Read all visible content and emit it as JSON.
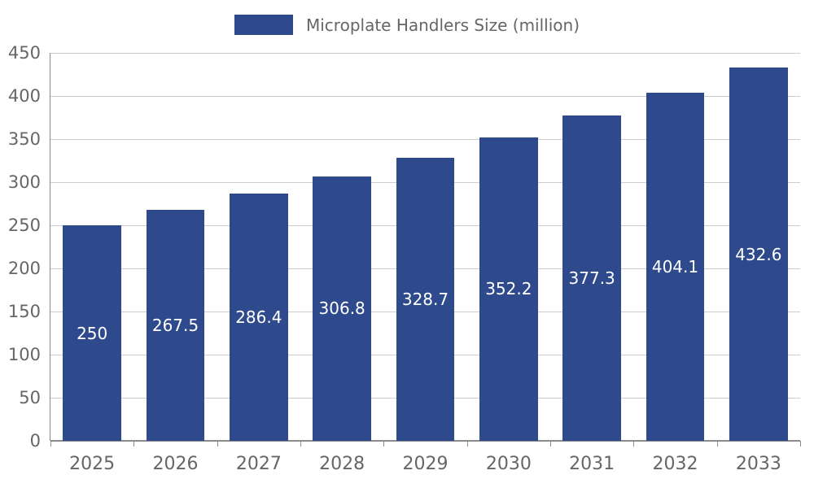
{
  "chart_data": {
    "type": "bar",
    "title": "Microplate Handlers Size (million)",
    "categories": [
      "2025",
      "2026",
      "2027",
      "2028",
      "2029",
      "2030",
      "2031",
      "2032",
      "2033"
    ],
    "values": [
      250,
      267.5,
      286.4,
      306.8,
      328.7,
      352.2,
      377.3,
      404.1,
      432.6
    ],
    "value_labels": [
      "250",
      "267.5",
      "286.4",
      "306.8",
      "328.7",
      "352.2",
      "377.3",
      "404.1",
      "432.6"
    ],
    "xlabel": "",
    "ylabel": "",
    "ylim": [
      0,
      450
    ],
    "ytick_step": 50,
    "grid": true,
    "legend_position": "top-center",
    "bar_color": "#2F4A8C",
    "label_color": "#FFFFFF",
    "axis_text_color": "#666666",
    "gridline_color": "#CCCCCC"
  }
}
